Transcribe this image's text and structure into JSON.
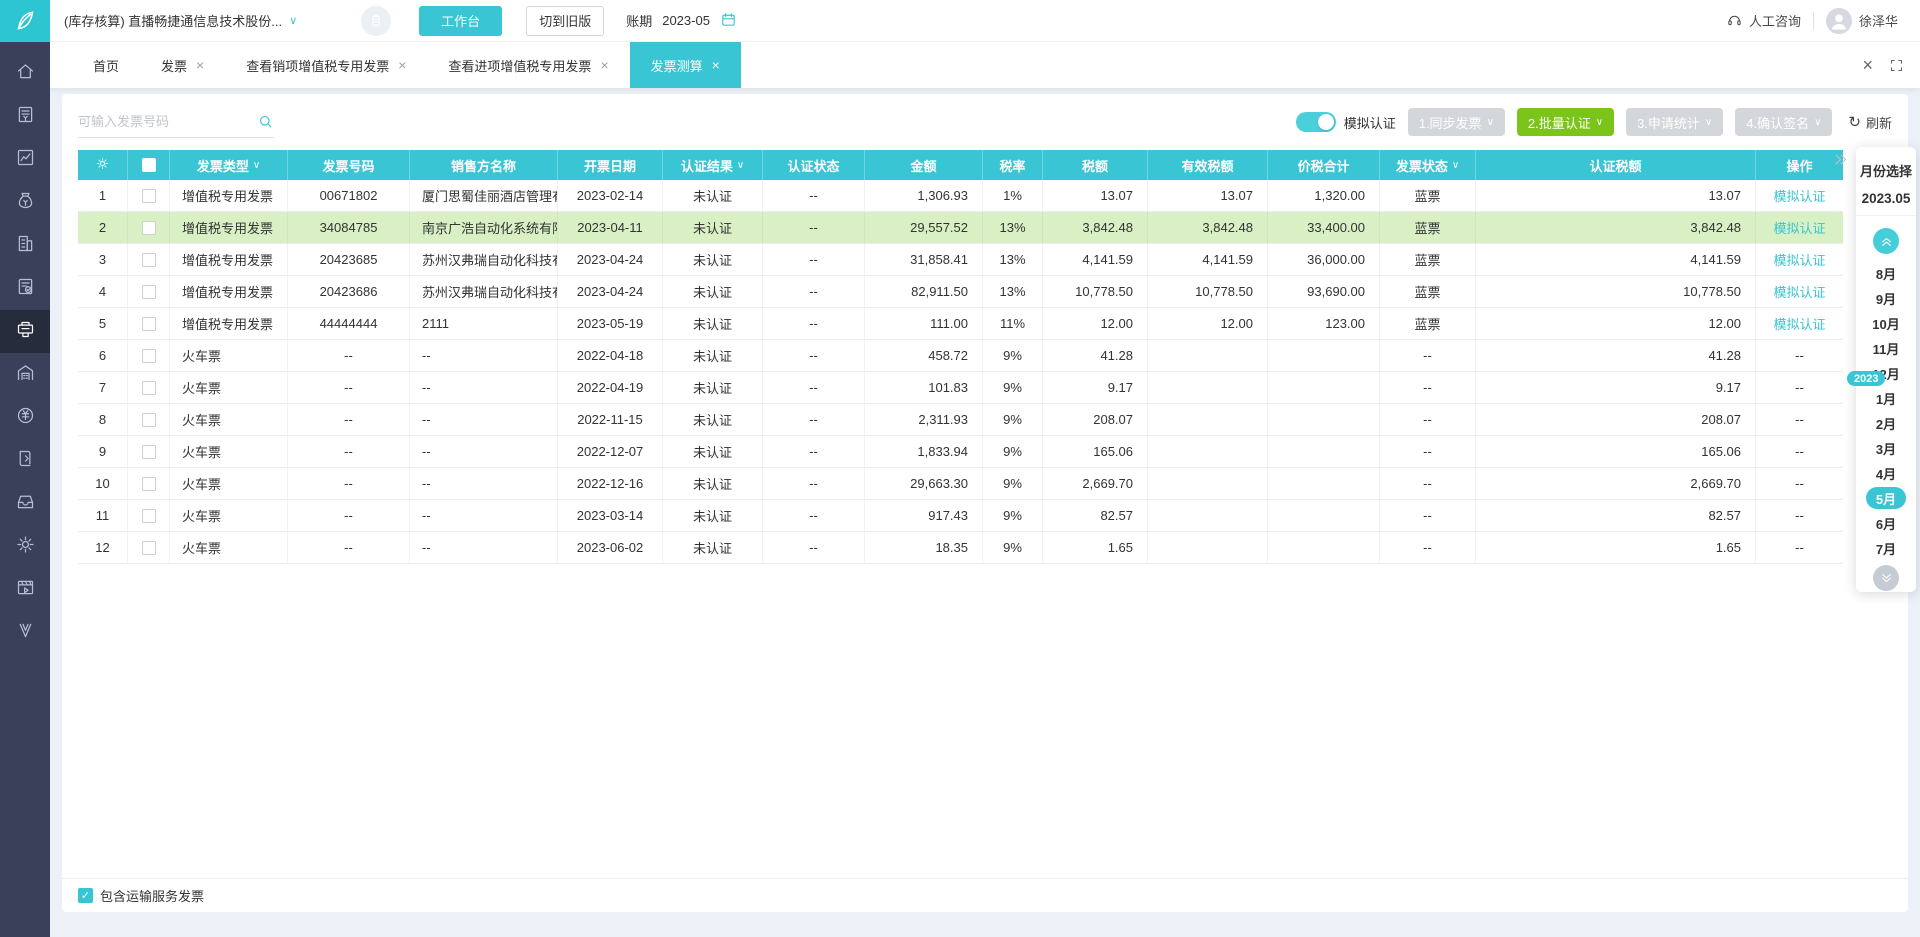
{
  "colors": {
    "primary": "#39c5d4",
    "green": "#7bc51a",
    "row_highlight": "#d9efc4",
    "sidebar_bg": "#3a4059",
    "link": "#36c6d3"
  },
  "topbar": {
    "company": "(库存核算) 直播畅捷通信息技术股份...",
    "workbench_label": "工作台",
    "switch_old_label": "切到旧版",
    "period_label": "账期",
    "period_value": "2023-05",
    "support_label": "人工咨询",
    "username": "徐泽华"
  },
  "tabs": [
    {
      "label": "首页",
      "closable": false,
      "active": false
    },
    {
      "label": "发票",
      "closable": true,
      "active": false
    },
    {
      "label": "查看销项增值税专用发票",
      "closable": true,
      "active": false
    },
    {
      "label": "查看进项增值税专用发票",
      "closable": true,
      "active": false
    },
    {
      "label": "发票测算",
      "closable": true,
      "active": true
    }
  ],
  "toolbar": {
    "search_placeholder": "可输入发票号码",
    "toggle_label": "模拟认证",
    "toggle_on": true,
    "buttons": [
      {
        "label": "1.同步发票",
        "style": "disabled",
        "dropdown": true
      },
      {
        "label": "2.批量认证",
        "style": "green",
        "dropdown": true
      },
      {
        "label": "3.申请统计",
        "style": "disabled",
        "dropdown": true
      },
      {
        "label": "4.确认签名",
        "style": "disabled",
        "dropdown": true
      }
    ],
    "refresh_label": "刷新"
  },
  "table": {
    "columns": [
      {
        "type": "icon",
        "icon": "gear-icon"
      },
      {
        "type": "checkbox"
      },
      {
        "label": "发票类型",
        "sort": true
      },
      {
        "label": "发票号码",
        "sort": false
      },
      {
        "label": "销售方名称",
        "sort": false
      },
      {
        "label": "开票日期",
        "sort": false
      },
      {
        "label": "认证结果",
        "sort": true
      },
      {
        "label": "认证状态",
        "sort": false
      },
      {
        "label": "金额",
        "sort": false
      },
      {
        "label": "税率",
        "sort": false
      },
      {
        "label": "税额",
        "sort": false
      },
      {
        "label": "有效税额",
        "sort": false
      },
      {
        "label": "价税合计",
        "sort": false
      },
      {
        "label": "发票状态",
        "sort": true
      },
      {
        "label": "认证税额",
        "sort": false
      },
      {
        "label": "操作",
        "sort": false
      }
    ],
    "rows": [
      {
        "highlight": false,
        "cells": [
          "1",
          "增值税专用发票",
          "00671802",
          "厦门思蜀佳丽酒店管理有限",
          "2023-02-14",
          "未认证",
          "--",
          "1,306.93",
          "1%",
          "13.07",
          "13.07",
          "1,320.00",
          "蓝票",
          "13.07",
          "模拟认证"
        ]
      },
      {
        "highlight": true,
        "cells": [
          "2",
          "增值税专用发票",
          "34084785",
          "南京广浩自动化系统有限责",
          "2023-04-11",
          "未认证",
          "--",
          "29,557.52",
          "13%",
          "3,842.48",
          "3,842.48",
          "33,400.00",
          "蓝票",
          "3,842.48",
          "模拟认证"
        ]
      },
      {
        "highlight": false,
        "cells": [
          "3",
          "增值税专用发票",
          "20423685",
          "苏州汉弗瑞自动化科技有限",
          "2023-04-24",
          "未认证",
          "--",
          "31,858.41",
          "13%",
          "4,141.59",
          "4,141.59",
          "36,000.00",
          "蓝票",
          "4,141.59",
          "模拟认证"
        ]
      },
      {
        "highlight": false,
        "cells": [
          "4",
          "增值税专用发票",
          "20423686",
          "苏州汉弗瑞自动化科技有限",
          "2023-04-24",
          "未认证",
          "--",
          "82,911.50",
          "13%",
          "10,778.50",
          "10,778.50",
          "93,690.00",
          "蓝票",
          "10,778.50",
          "模拟认证"
        ]
      },
      {
        "highlight": false,
        "cells": [
          "5",
          "增值税专用发票",
          "44444444",
          "2111",
          "2023-05-19",
          "未认证",
          "--",
          "111.00",
          "11%",
          "12.00",
          "12.00",
          "123.00",
          "蓝票",
          "12.00",
          "模拟认证"
        ]
      },
      {
        "highlight": false,
        "cells": [
          "6",
          "火车票",
          "--",
          "--",
          "2022-04-18",
          "未认证",
          "--",
          "458.72",
          "9%",
          "41.28",
          "",
          "",
          "--",
          "41.28",
          "--"
        ]
      },
      {
        "highlight": false,
        "cells": [
          "7",
          "火车票",
          "--",
          "--",
          "2022-04-19",
          "未认证",
          "--",
          "101.83",
          "9%",
          "9.17",
          "",
          "",
          "--",
          "9.17",
          "--"
        ]
      },
      {
        "highlight": false,
        "cells": [
          "8",
          "火车票",
          "--",
          "--",
          "2022-11-15",
          "未认证",
          "--",
          "2,311.93",
          "9%",
          "208.07",
          "",
          "",
          "--",
          "208.07",
          "--"
        ]
      },
      {
        "highlight": false,
        "cells": [
          "9",
          "火车票",
          "--",
          "--",
          "2022-12-07",
          "未认证",
          "--",
          "1,833.94",
          "9%",
          "165.06",
          "",
          "",
          "--",
          "165.06",
          "--"
        ]
      },
      {
        "highlight": false,
        "cells": [
          "10",
          "火车票",
          "--",
          "--",
          "2022-12-16",
          "未认证",
          "--",
          "29,663.30",
          "9%",
          "2,669.70",
          "",
          "",
          "--",
          "2,669.70",
          "--"
        ]
      },
      {
        "highlight": false,
        "cells": [
          "11",
          "火车票",
          "--",
          "--",
          "2023-03-14",
          "未认证",
          "--",
          "917.43",
          "9%",
          "82.57",
          "",
          "",
          "--",
          "82.57",
          "--"
        ]
      },
      {
        "highlight": false,
        "cells": [
          "12",
          "火车票",
          "--",
          "--",
          "2023-06-02",
          "未认证",
          "--",
          "18.35",
          "9%",
          "1.65",
          "",
          "",
          "--",
          "1.65",
          "--"
        ]
      }
    ]
  },
  "footer": {
    "include_transport_label": "包含运输服务发票",
    "checked": true,
    "check_glyph": "✓"
  },
  "month_panel": {
    "title": "月份选择",
    "current": "2023.05",
    "year_badge": "2023",
    "months_top": [
      "8月",
      "9月",
      "10月",
      "11月",
      "12月"
    ],
    "months_bottom": [
      "1月",
      "2月",
      "3月",
      "4月",
      "5月",
      "6月",
      "7月"
    ],
    "active_month": "5月"
  },
  "sidebar": {
    "items": [
      {
        "name": "home-icon",
        "active": false
      },
      {
        "name": "invoice-bill-icon",
        "active": false
      },
      {
        "name": "chart-icon",
        "active": false
      },
      {
        "name": "moneybag-icon",
        "active": false
      },
      {
        "name": "building-icon",
        "active": false
      },
      {
        "name": "report-check-icon",
        "active": false
      },
      {
        "name": "invoice-print-icon",
        "active": true
      },
      {
        "name": "warehouse-icon",
        "active": false
      },
      {
        "name": "tax-coin-icon",
        "active": false
      },
      {
        "name": "carryover-book-icon",
        "active": false
      },
      {
        "name": "inbox-icon",
        "active": false
      },
      {
        "name": "settings-gear-icon",
        "active": false
      },
      {
        "name": "video-icon",
        "active": false
      },
      {
        "name": "v-logo-icon",
        "active": false
      }
    ]
  }
}
